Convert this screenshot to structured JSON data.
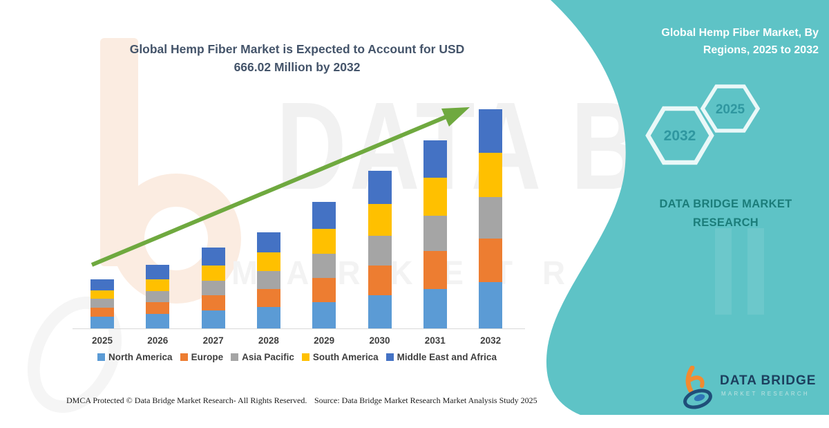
{
  "header": {
    "title_line1": "Global Hemp Fiber Market is Expected to Account for USD",
    "title_line2": "666.02 Million by 2032",
    "title_color": "#44546A"
  },
  "chart_data": {
    "type": "bar",
    "stacked": true,
    "title": "Global Hemp Fiber Market is Expected to Account for USD 666.02 Million by 2032",
    "unit": "USD Million",
    "categories": [
      "2025",
      "2026",
      "2027",
      "2028",
      "2029",
      "2030",
      "2031",
      "2032"
    ],
    "series": [
      {
        "name": "North America",
        "color": "#5B9BD5",
        "values": [
          35.8,
          44.4,
          54.1,
          64.2,
          80.6,
          100.6,
          120.1,
          139.9
        ]
      },
      {
        "name": "Europe",
        "color": "#ED7D31",
        "values": [
          26.8,
          34.7,
          46.7,
          55.5,
          73.0,
          91.0,
          114.4,
          133.2
        ]
      },
      {
        "name": "Asia Pacific",
        "color": "#A5A5A5",
        "values": [
          26.8,
          34.7,
          44.3,
          55.5,
          73.0,
          91.0,
          108.7,
          126.5
        ]
      },
      {
        "name": "South America",
        "color": "#FFC000",
        "values": [
          25.3,
          34.7,
          46.7,
          55.5,
          76.8,
          95.8,
          114.4,
          133.2
        ]
      },
      {
        "name": "Middle East and Africa",
        "color": "#4472C4",
        "values": [
          34.3,
          44.4,
          54.1,
          61.3,
          80.6,
          100.6,
          114.4,
          133.2
        ]
      }
    ],
    "totals": [
      149.0,
      192.9,
      245.9,
      292.0,
      384.0,
      479.0,
      572.0,
      666.0
    ],
    "value_axis": {
      "visible": false,
      "min": 0,
      "max": 700
    },
    "category_axis_labels": [
      "2025",
      "2026",
      "2027",
      "2028",
      "2029",
      "2030",
      "2031",
      "2032"
    ],
    "legend_position": "bottom",
    "gridlines": false,
    "trend_arrow": {
      "shown": true,
      "color": "#6FA93F",
      "direction": "up-right"
    }
  },
  "panel": {
    "bg": "#5EC3C6",
    "heading_line1": "Global Hemp Fiber Market, By",
    "heading_line2": "Regions, 2025 to 2032",
    "hex_large_label": "2032",
    "hex_small_label": "2025",
    "hex_stroke": "#EAF8F8",
    "hex_text_color": "#2F97A0",
    "brand_line1": "DATA BRIDGE MARKET",
    "brand_line2": "RESEARCH",
    "brand_color": "#1B7D7A"
  },
  "logo": {
    "name": "DATA BRIDGE",
    "sub": "MARKET RESEARCH",
    "orange": "#F28B30",
    "blue": "#1F4E79"
  },
  "footer": {
    "dmca": "DMCA Protected © Data Bridge Market Research-  All Rights Reserved.",
    "source": "Source: Data Bridge Market Research Market Analysis Study 2025"
  },
  "watermark": {
    "text_large": "DATA BRI",
    "text_row2": "M A R K E T   R E S E A R"
  }
}
